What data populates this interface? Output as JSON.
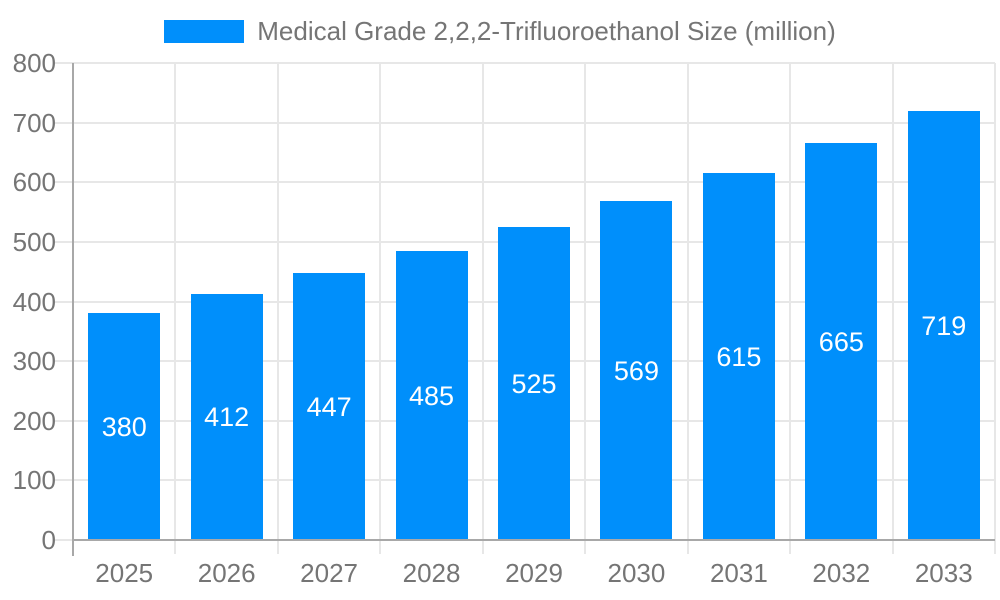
{
  "chart_data": {
    "type": "bar",
    "title": "Medical Grade 2,2,2-Trifluoroethanol Size (million)",
    "legend": {
      "label": "Medical Grade 2,2,2-Trifluoroethanol Size (million)",
      "position": "top",
      "swatch_shape": "rectangle"
    },
    "categories": [
      "2025",
      "2026",
      "2027",
      "2028",
      "2029",
      "2030",
      "2031",
      "2032",
      "2033"
    ],
    "values": [
      380,
      412,
      447,
      485,
      525,
      569,
      615,
      665,
      719
    ],
    "value_labels_shown_inside_bars": true,
    "xlabel": "",
    "ylabel": "",
    "ylim": [
      0,
      800
    ],
    "yticks": [
      0,
      100,
      200,
      300,
      400,
      500,
      600,
      700,
      800
    ],
    "grid": true,
    "colors": {
      "bar": "#008FFB",
      "value_label": "#ffffff",
      "axis_text": "#757575",
      "gridline": "#e7e7e7",
      "axis_line": "#a8a8a8",
      "background": "#ffffff"
    }
  }
}
